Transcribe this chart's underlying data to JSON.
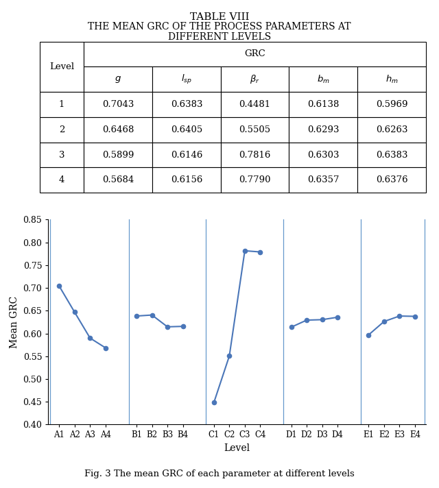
{
  "table_title1": "TABLE VIII",
  "table_title2": "THE MEAN GRC OF THE PROCESS PARAMETERS AT",
  "table_title3": "DIFFERENT LEVELS",
  "table_data": [
    [
      0.7043,
      0.6383,
      0.4481,
      0.6138,
      0.5969
    ],
    [
      0.6468,
      0.6405,
      0.5505,
      0.6293,
      0.6263
    ],
    [
      0.5899,
      0.6146,
      0.7816,
      0.6303,
      0.6383
    ],
    [
      0.5684,
      0.6156,
      0.779,
      0.6357,
      0.6376
    ]
  ],
  "plot_data": {
    "g": [
      0.7043,
      0.6468,
      0.5899,
      0.5684
    ],
    "lsp": [
      0.6383,
      0.6405,
      0.6146,
      0.6156
    ],
    "br": [
      0.4481,
      0.5505,
      0.7816,
      0.779
    ],
    "bm": [
      0.6138,
      0.6293,
      0.6303,
      0.6357
    ],
    "hm": [
      0.5969,
      0.6263,
      0.6383,
      0.6376
    ]
  },
  "x_tick_labels": [
    "A1",
    "A2",
    "A3",
    "A4",
    "B1",
    "B2",
    "B3",
    "B4",
    "C1",
    "C2",
    "C3",
    "C4",
    "D1",
    "D2",
    "D3",
    "D4",
    "E1",
    "E2",
    "E3",
    "E4"
  ],
  "vline_x": [
    4.5,
    9.5,
    14.5,
    19.5
  ],
  "ylim": [
    0.4,
    0.85
  ],
  "yticks": [
    0.4,
    0.45,
    0.5,
    0.55,
    0.6,
    0.65,
    0.7,
    0.75,
    0.8,
    0.85
  ],
  "ylabel": "Mean GRC",
  "xlabel": "Level",
  "fig_caption": "Fig. 3 The mean GRC of each parameter at different levels",
  "line_color": "#4a76b8",
  "vline_color": "#6699cc",
  "bg_color": "#ffffff"
}
